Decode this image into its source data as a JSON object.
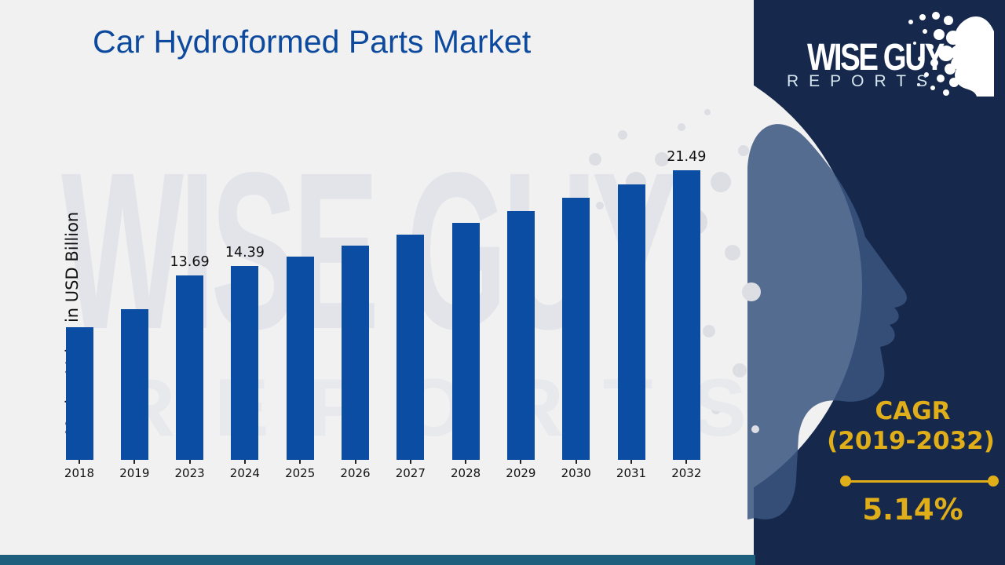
{
  "title": {
    "text": "Car Hydroformed Parts Market"
  },
  "watermark": {
    "line1": "WISE GUY",
    "line2": "REPORTS"
  },
  "logo": {
    "line1": "WISE GUY",
    "line2": "REPORTS"
  },
  "cagr": {
    "label": "CAGR",
    "range": "(2019-2032)",
    "value": "5.14%"
  },
  "chart_data": {
    "type": "bar",
    "title": "Car Hydroformed Parts Market",
    "xlabel": "",
    "ylabel": "Market Value in USD Billion",
    "categories": [
      "2018",
      "2019",
      "2023",
      "2024",
      "2025",
      "2026",
      "2027",
      "2028",
      "2029",
      "2030",
      "2031",
      "2032"
    ],
    "values": [
      9.85,
      11.21,
      13.69,
      14.39,
      15.13,
      15.91,
      16.73,
      17.59,
      18.5,
      19.45,
      20.44,
      21.49
    ],
    "bar_labels": {
      "2023": "13.69",
      "2024": "14.39",
      "2032": "21.49"
    },
    "ylim": [
      0,
      23
    ],
    "grid": false,
    "legend": "none",
    "bar_color": "#0b4da2"
  },
  "colors": {
    "title_blue": "#0d4a9e",
    "bar_blue": "#0b4da2",
    "panel_navy": "#16294d",
    "gold": "#dfae18",
    "teal": "#1d5f7d",
    "background": "#f1f1f2",
    "watermark_gray": "#e2e4e9"
  }
}
